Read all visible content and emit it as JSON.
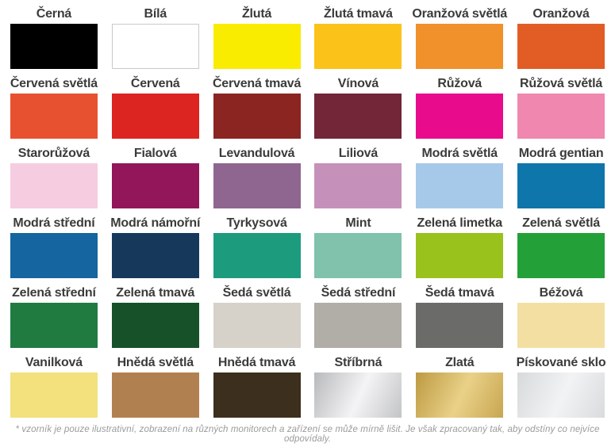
{
  "page": {
    "footnote": "* vzorník je pouze ilustrativní, zobrazení na různých monitorech a zařízení se může mírně lišit. Je však zpracovaný tak, aby odstíny co nejvíce odpovídaly."
  },
  "palette": {
    "columns": 6,
    "label_color": "#3b3b3a",
    "white_swatch_border": "#c9c9c9",
    "swatches": [
      {
        "name": "Černá",
        "color": "#000000"
      },
      {
        "name": "Bílá",
        "color": "#ffffff",
        "border": "#c9c9c9"
      },
      {
        "name": "Žlutá",
        "color": "#f9ec00"
      },
      {
        "name": "Žlutá tmavá",
        "color": "#fbc21a"
      },
      {
        "name": "Oranžová světlá",
        "color": "#f0912b"
      },
      {
        "name": "Oranžová",
        "color": "#e25c26"
      },
      {
        "name": "Červená světlá",
        "color": "#e8512f"
      },
      {
        "name": "Červená",
        "color": "#dc2420"
      },
      {
        "name": "Červená tmavá",
        "color": "#8a2522"
      },
      {
        "name": "Vínová",
        "color": "#722638"
      },
      {
        "name": "Růžová",
        "color": "#e80c8c"
      },
      {
        "name": "Růžová světlá",
        "color": "#ef87ae"
      },
      {
        "name": "Starorůžová",
        "color": "#f6cce0"
      },
      {
        "name": "Fialová",
        "color": "#921659"
      },
      {
        "name": "Levandulová",
        "color": "#8f668f"
      },
      {
        "name": "Liliová",
        "color": "#c591ba"
      },
      {
        "name": "Modrá světlá",
        "color": "#a7c9e9"
      },
      {
        "name": "Modrá gentian",
        "color": "#0e76aa"
      },
      {
        "name": "Modrá střední",
        "color": "#1465a0"
      },
      {
        "name": "Modrá námořní",
        "color": "#16395b"
      },
      {
        "name": "Tyrkysová",
        "color": "#1d9b7d"
      },
      {
        "name": "Mint",
        "color": "#80c2ac"
      },
      {
        "name": "Zelená limetka",
        "color": "#99c21d"
      },
      {
        "name": "Zelená světlá",
        "color": "#23a038"
      },
      {
        "name": "Zelená střední",
        "color": "#1f7b40"
      },
      {
        "name": "Zelená tmavá",
        "color": "#175129"
      },
      {
        "name": "Šedá světlá",
        "color": "#d6d2c9"
      },
      {
        "name": "Šedá střední",
        "color": "#b1aea7"
      },
      {
        "name": "Šedá tmavá",
        "color": "#6b6b6a"
      },
      {
        "name": "Béžová",
        "color": "#f4dfa3"
      },
      {
        "name": "Vanilková",
        "color": "#f2e17d"
      },
      {
        "name": "Hnědá světlá",
        "color": "#b18050"
      },
      {
        "name": "Hnědá tmavá",
        "color": "#3d2f1d"
      },
      {
        "name": "Stříbrná",
        "gradient": [
          "#b8b9bb",
          "#f4f4f6",
          "#c3c4c6"
        ]
      },
      {
        "name": "Zlatá",
        "gradient": [
          "#bd9a42",
          "#e9d188",
          "#c8a650"
        ]
      },
      {
        "name": "Pískované sklo",
        "gradient": [
          "#d7d9db",
          "#f2f3f5",
          "#d9dbdd"
        ]
      }
    ]
  }
}
